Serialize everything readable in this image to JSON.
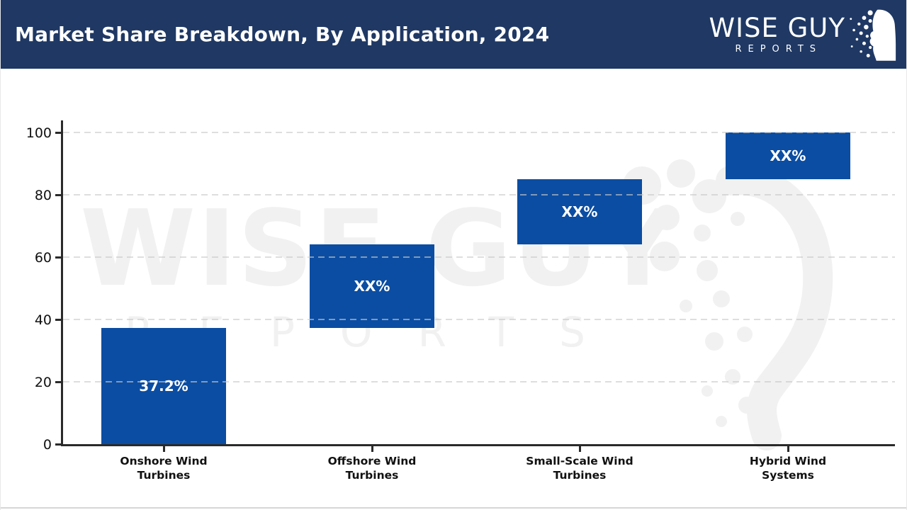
{
  "header": {
    "title": "Market Share Breakdown, By Application, 2024",
    "logo": {
      "name": "WISE GUY",
      "sub": "REPORTS"
    }
  },
  "watermark": {
    "line1": "WISE GUY",
    "line2": "REPORTS"
  },
  "colors": {
    "header_bg": "#1F3864",
    "bar": "#0B4DA2",
    "grid": "#c9c9c9",
    "axis": "#2a2a2a",
    "watermark": "#f1f1f1",
    "bar_label": "#ffffff"
  },
  "chart_data": {
    "type": "bar",
    "subtype": "waterfall",
    "title": "Market Share Breakdown, By Application, 2024",
    "categories": [
      {
        "line1": "Onshore Wind",
        "line2": "Turbines"
      },
      {
        "line1": "Offshore Wind",
        "line2": "Turbines"
      },
      {
        "line1": "Small-Scale Wind",
        "line2": "Turbines"
      },
      {
        "line1": "Hybrid Wind",
        "line2": "Systems"
      }
    ],
    "segments": [
      {
        "category": "Onshore Wind Turbines",
        "start": 0,
        "end": 37.2,
        "size": 37.2,
        "label": "37.2%"
      },
      {
        "category": "Offshore Wind Turbines",
        "start": 37.2,
        "end": 64,
        "size": 26.8,
        "label": "XX%"
      },
      {
        "category": "Small-Scale Wind Turbines",
        "start": 64,
        "end": 85,
        "size": 21,
        "label": "XX%"
      },
      {
        "category": "Hybrid Wind Systems",
        "start": 85,
        "end": 100,
        "size": 15,
        "label": "XX%"
      }
    ],
    "ylim": [
      0,
      100
    ],
    "yticks": [
      0,
      20,
      40,
      60,
      80,
      100
    ],
    "xlabel": "",
    "ylabel": "",
    "grid": "horizontal-dashed",
    "legend": "none"
  }
}
